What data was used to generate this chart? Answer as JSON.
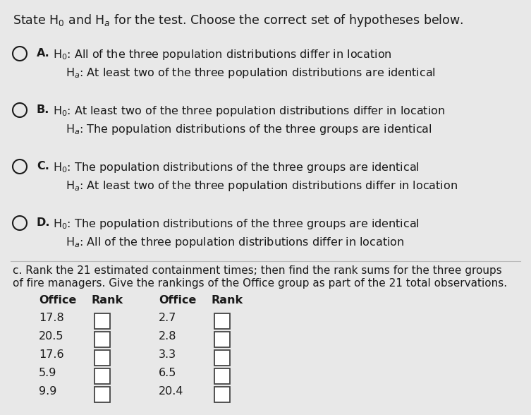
{
  "title": "State H$_0$ and H$_a$ for the test. Choose the correct set of hypotheses below.",
  "options": [
    {
      "letter": "A.",
      "h0": "H$_0$: All of the three population distributions differ in location",
      "ha": "H$_a$: At least two of the three population distributions are identical"
    },
    {
      "letter": "B.",
      "h0": "H$_0$: At least two of the three population distributions differ in location",
      "ha": "H$_a$: The population distributions of the three groups are identical"
    },
    {
      "letter": "C.",
      "h0": "H$_0$: The population distributions of the three groups are identical",
      "ha": "H$_a$: At least two of the three population distributions differ in location"
    },
    {
      "letter": "D.",
      "h0": "H$_0$: The population distributions of the three groups are identical",
      "ha": "H$_a$: All of the three population distributions differ in location"
    }
  ],
  "part_c_label_line1": "c. Rank the 21 estimated containment times; then find the rank sums for the three groups",
  "part_c_label_line2": "of fire managers. Give the rankings of the Office group as part of the 21 total observations.",
  "table_headers": [
    "Office",
    "Rank",
    "Office",
    "Rank"
  ],
  "col1_office": [
    "17.8",
    "20.5",
    "17.6",
    "5.9",
    "9.9"
  ],
  "col2_office": [
    "2.7",
    "2.8",
    "3.3",
    "6.5",
    "20.4"
  ],
  "bg_color": "#e8e8e8",
  "text_color": "#1a1a1a",
  "circle_color": "#1a1a1a",
  "title_fontsize": 12.5,
  "option_fontsize": 11.5,
  "partc_fontsize": 11,
  "table_fontsize": 11.5
}
